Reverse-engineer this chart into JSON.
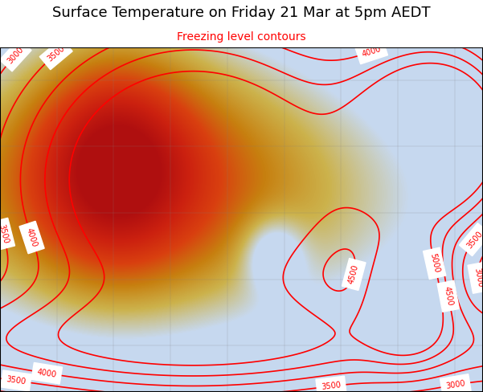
{
  "title": "Surface Temperature on Friday 21 Mar at 5pm AEDT",
  "subtitle": "Freezing level contours",
  "title_fontsize": 13,
  "subtitle_fontsize": 10,
  "background_color": "#c8d8f0",
  "border_color": "#000000",
  "map_bg": "#c8d8f0",
  "header_bg": "#ffffff",
  "fig_width": 6.01,
  "fig_height": 4.88,
  "dpi": 100
}
